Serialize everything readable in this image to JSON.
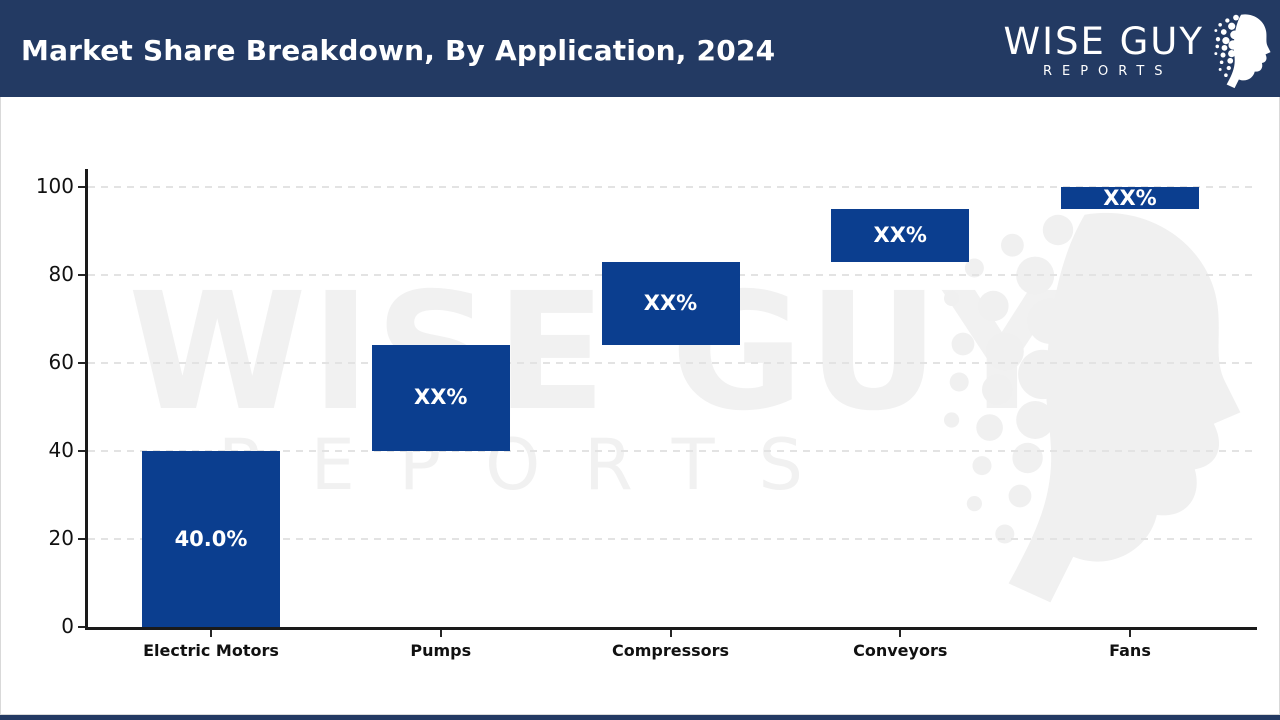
{
  "header": {
    "title": "Market Share Breakdown, By Application, 2024",
    "logo_line1": "WISE GUY",
    "logo_line2": "REPORTS"
  },
  "watermark": {
    "line1": "WISE GUY",
    "line2": "REPORTS"
  },
  "colors": {
    "header_navy": "#233A63",
    "bar_blue": "#0B3E8F",
    "grid_gray": "#e3e3e3",
    "watermark_gray": "#f1f1f1",
    "label_white": "#ffffff",
    "axis_black": "#1a1a1a"
  },
  "chart_data": {
    "type": "bar",
    "subtype": "waterfall",
    "title": "Market Share Breakdown, By Application, 2024",
    "xlabel": "",
    "ylabel": "",
    "categories": [
      "Electric Motors",
      "Pumps",
      "Compressors",
      "Conveyors",
      "Fans"
    ],
    "segments": [
      {
        "category": "Electric Motors",
        "start": 0,
        "end": 40,
        "label": "40.0%"
      },
      {
        "category": "Pumps",
        "start": 40,
        "end": 64,
        "label": "XX%"
      },
      {
        "category": "Compressors",
        "start": 64,
        "end": 83,
        "label": "XX%"
      },
      {
        "category": "Conveyors",
        "start": 83,
        "end": 95,
        "label": "XX%"
      },
      {
        "category": "Fans",
        "start": 95,
        "end": 100,
        "label": "XX%"
      }
    ],
    "yticks": [
      0,
      20,
      40,
      60,
      80,
      100
    ],
    "ylim": [
      0,
      104
    ],
    "grid": "horizontal-dashed",
    "legend": "none",
    "value_labels_inside_bars": true
  }
}
